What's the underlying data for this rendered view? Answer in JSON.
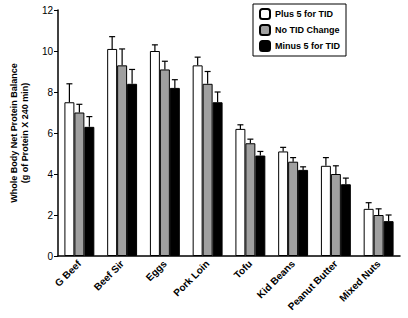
{
  "chart_data": {
    "type": "bar",
    "y_label": "Whole Body Net Protein Balance\n(g of Protein X 240 min)",
    "categories": [
      "G Beef",
      "Beef Sir",
      "Eggs",
      "Pork Loin",
      "Tofu",
      "Kid Beans",
      "Peanut Butter",
      "Mixed Nuts"
    ],
    "series": [
      {
        "name": "Plus 5 for TID",
        "color": "#ffffff",
        "values": [
          7.5,
          10.1,
          10.0,
          9.3,
          6.2,
          5.1,
          4.4,
          2.3
        ],
        "errors": [
          0.9,
          0.6,
          0.3,
          0.4,
          0.2,
          0.2,
          0.4,
          0.3
        ]
      },
      {
        "name": "No TID Change",
        "color": "#a0a0a0",
        "values": [
          7.0,
          9.3,
          9.1,
          8.4,
          5.5,
          4.6,
          4.0,
          2.0
        ],
        "errors": [
          0.4,
          0.8,
          0.4,
          0.6,
          0.2,
          0.2,
          0.4,
          0.3
        ]
      },
      {
        "name": "Minus 5 for TID",
        "color": "#000000",
        "values": [
          6.3,
          8.4,
          8.2,
          7.5,
          4.9,
          4.2,
          3.5,
          1.7
        ],
        "errors": [
          0.5,
          0.7,
          0.4,
          0.5,
          0.2,
          0.15,
          0.3,
          0.3
        ]
      }
    ],
    "ylim": [
      0,
      12
    ],
    "yticks": [
      0,
      2,
      4,
      6,
      8,
      10,
      12
    ],
    "grid": false,
    "legend": "upper right"
  }
}
